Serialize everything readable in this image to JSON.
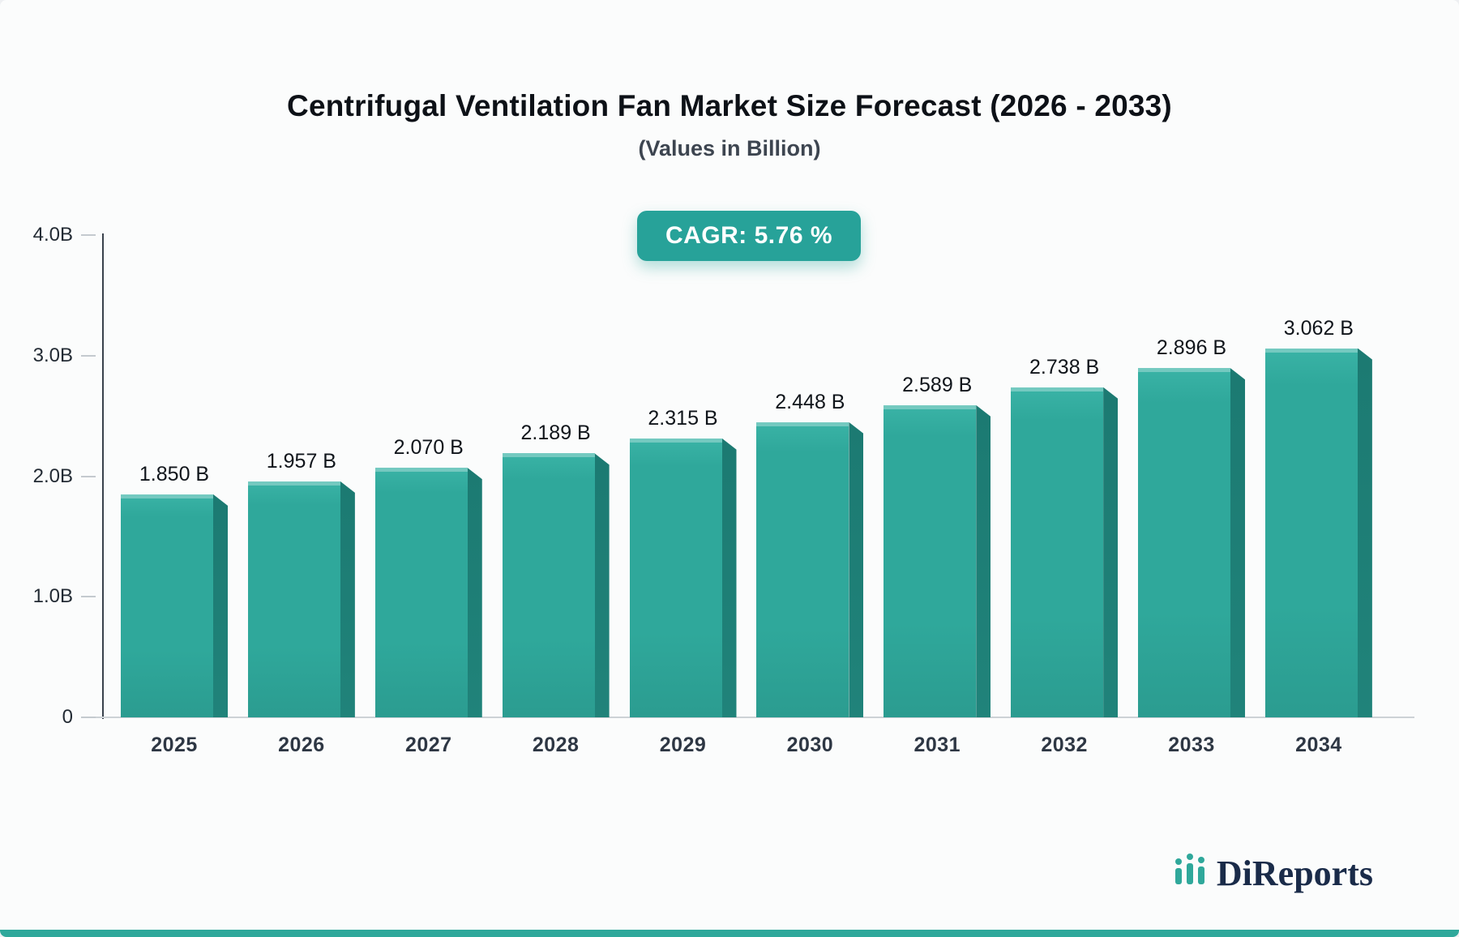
{
  "title": "Centrifugal Ventilation Fan Market Size Forecast (2026 - 2033)",
  "subtitle": "(Values in Billion)",
  "badge": {
    "label": "CAGR: 5.76 %"
  },
  "chart_data": {
    "type": "bar",
    "title": "Centrifugal Ventilation Fan Market Size Forecast (2026 - 2033)",
    "subtitle": "(Values in Billion)",
    "cagr": "5.76 %",
    "categories": [
      "2025",
      "2026",
      "2027",
      "2028",
      "2029",
      "2030",
      "2031",
      "2032",
      "2033",
      "2034"
    ],
    "values": [
      1.85,
      1.957,
      2.07,
      2.189,
      2.315,
      2.448,
      2.589,
      2.738,
      2.896,
      3.062
    ],
    "value_labels": [
      "1.850 B",
      "1.957 B",
      "2.070 B",
      "2.189 B",
      "2.315 B",
      "2.448 B",
      "2.589 B",
      "2.738 B",
      "2.896 B",
      "3.062 B"
    ],
    "xlabel": "",
    "ylabel": "",
    "ylim": [
      0,
      4.0
    ],
    "yticks": [
      {
        "value": 0,
        "label": "0"
      },
      {
        "value": 1,
        "label": "1.0B"
      },
      {
        "value": 2,
        "label": "2.0B"
      },
      {
        "value": 3,
        "label": "3.0B"
      },
      {
        "value": 4,
        "label": "4.0B"
      }
    ],
    "grid": false,
    "legend": "none",
    "units": "Billion"
  },
  "colors": {
    "bar_teal": "#2fa89b",
    "bar_teal_light": "#3ab3a6",
    "bar_teal_dark": "#1c7a72",
    "badge_teal": "#27a299",
    "logo_navy": "#1a2b49"
  },
  "branding": {
    "logo_text": "DiReports",
    "logo_icon": "bar-chart-icon"
  }
}
